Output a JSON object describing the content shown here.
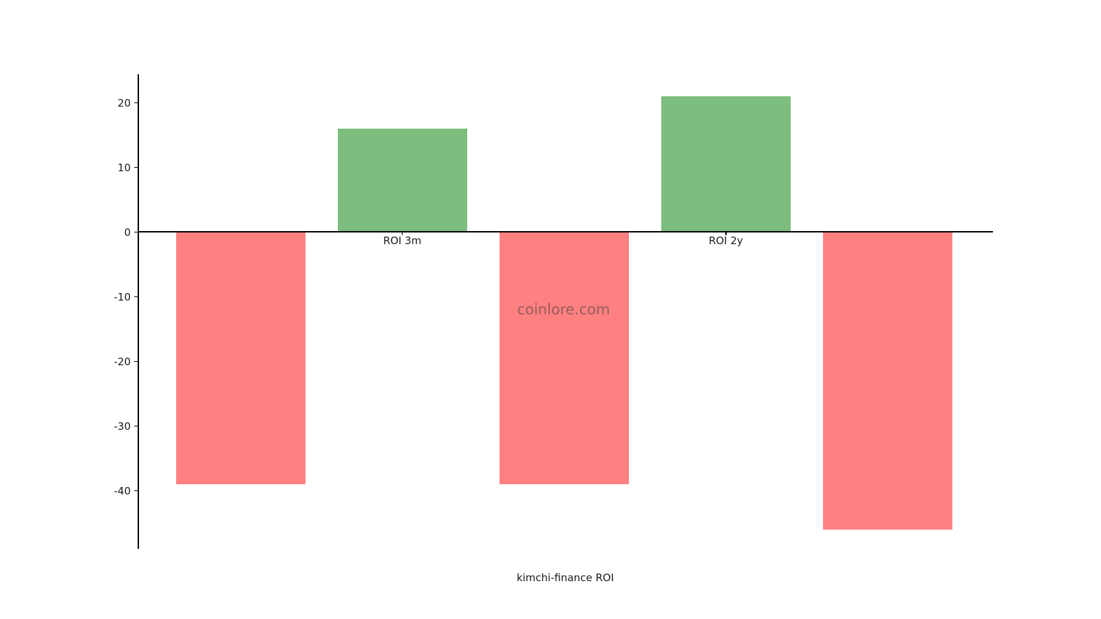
{
  "chart_data": {
    "type": "bar",
    "title": "kimchi-finance ROI",
    "categories": [
      "",
      "ROI 3m",
      "",
      "ROI 2y",
      ""
    ],
    "values": [
      -39,
      16,
      -39,
      21,
      -46
    ],
    "y_ticks": [
      20,
      10,
      0,
      -10,
      -20,
      -30,
      -40
    ],
    "ylim": [
      -49.3,
      24.5
    ],
    "xlabel": "",
    "ylabel": "",
    "grid": false,
    "legend": "none",
    "colors": {
      "positive": "#7dbd7e",
      "negative": "#ff8080",
      "axis": "#000000",
      "tick_label": "#1a1a1a"
    }
  },
  "watermark": {
    "text": "coinlore.com",
    "color": "#3f3f3f"
  }
}
